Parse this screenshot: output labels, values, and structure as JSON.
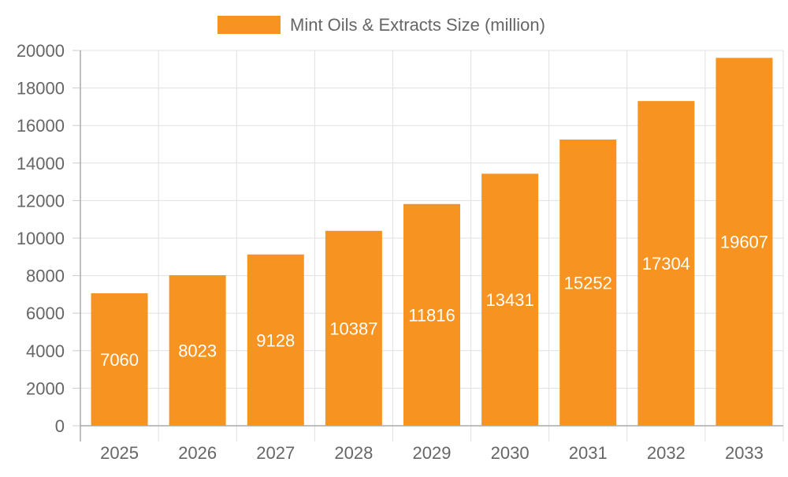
{
  "chart_data": {
    "type": "bar",
    "title": "",
    "xlabel": "",
    "ylabel": "",
    "categories": [
      "2025",
      "2026",
      "2027",
      "2028",
      "2029",
      "2030",
      "2031",
      "2032",
      "2033"
    ],
    "series": [
      {
        "name": "Mint Oils & Extracts Size (million)",
        "values": [
          7060,
          8023,
          9128,
          10387,
          11816,
          13431,
          15252,
          17304,
          19607
        ],
        "color": "#F79421"
      }
    ],
    "ylim": [
      0,
      20000
    ],
    "yticks": [
      "0",
      "2000",
      "4000",
      "6000",
      "8000",
      "10000",
      "12000",
      "14000",
      "16000",
      "18000",
      "20000"
    ],
    "grid": true,
    "legend": "top-center",
    "data_labels": true
  }
}
